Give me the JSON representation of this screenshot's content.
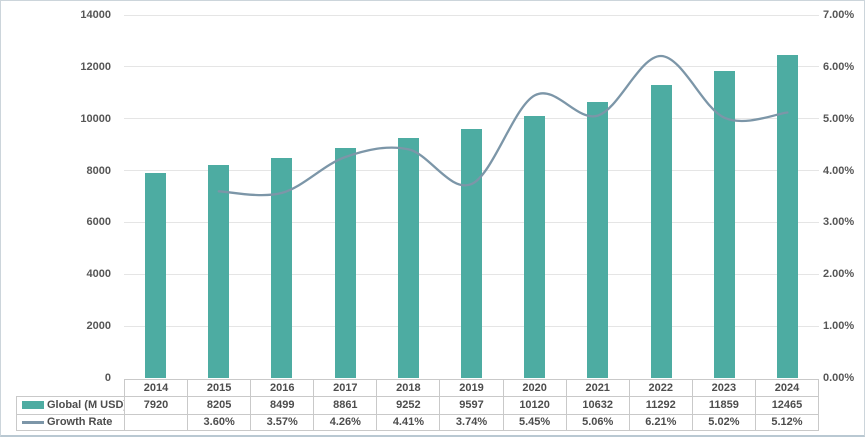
{
  "chart_data": {
    "type": "combo-bar-line",
    "title": "",
    "categories": [
      "2014",
      "2015",
      "2016",
      "2017",
      "2018",
      "2019",
      "2020",
      "2021",
      "2022",
      "2023",
      "2024"
    ],
    "series": [
      {
        "name": "Global (M USD)",
        "type": "bar",
        "axis": "left",
        "color": "#4DACA2",
        "values": [
          7920,
          8205,
          8499,
          8861,
          9252,
          9597,
          10120,
          10632,
          11292,
          11859,
          12465
        ],
        "display": [
          "7920",
          "8205",
          "8499",
          "8861",
          "9252",
          "9597",
          "10120",
          "10632",
          "11292",
          "11859",
          "12465"
        ]
      },
      {
        "name": "Growth Rate",
        "type": "line",
        "axis": "right",
        "color": "#7C96A8",
        "values": [
          null,
          3.6,
          3.57,
          4.26,
          4.41,
          3.74,
          5.45,
          5.06,
          6.21,
          5.02,
          5.12
        ],
        "display": [
          "",
          "3.60%",
          "3.57%",
          "4.26%",
          "4.41%",
          "3.74%",
          "5.45%",
          "5.06%",
          "6.21%",
          "5.02%",
          "5.12%"
        ]
      }
    ],
    "left_axis": {
      "min": 0,
      "max": 14000,
      "step": 2000,
      "tick_labels": [
        "0",
        "2000",
        "4000",
        "6000",
        "8000",
        "10000",
        "12000",
        "14000"
      ]
    },
    "right_axis": {
      "min": 0,
      "max": 7,
      "step": 1,
      "tick_labels": [
        "0.00%",
        "1.00%",
        "2.00%",
        "3.00%",
        "4.00%",
        "5.00%",
        "6.00%",
        "7.00%"
      ]
    },
    "grid": true,
    "legend_position": "data-table-left",
    "line_smooth": true
  },
  "colors": {
    "bar": "#4DACA2",
    "line": "#7C96A8",
    "grid": "#E5E5E5",
    "table_border": "#C9C9C9",
    "text": "#4D4D4D",
    "frame_border": "#CCD5DB"
  }
}
